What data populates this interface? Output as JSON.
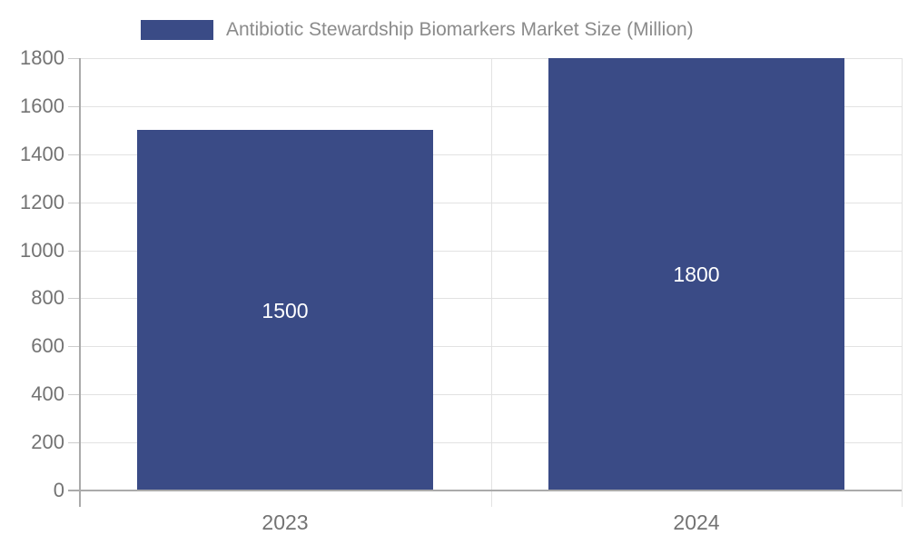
{
  "legend": {
    "label": "Antibiotic Stewardship Biomarkers Market Size (Million)"
  },
  "chart_data": {
    "type": "bar",
    "title": "Antibiotic Stewardship Biomarkers Market Size (Million)",
    "categories": [
      "2023",
      "2024"
    ],
    "values": [
      1500,
      1800
    ],
    "bar_labels": [
      "1500",
      "1800"
    ],
    "xlabel": "",
    "ylabel": "",
    "ylim": [
      0,
      1800
    ],
    "ytick_step": 200,
    "yticks": [
      0,
      200,
      400,
      600,
      800,
      1000,
      1200,
      1400,
      1600,
      1800
    ],
    "grid": true,
    "legend_position": "top",
    "colors": {
      "bar": "#3A4B86",
      "bar_label_text": "#ffffff",
      "axis_text": "#737373",
      "legend_text": "#8b8b8b",
      "grid_line": "#e2e2e2",
      "axis_line": "#aaaaaa",
      "minor_tick": "#cccccc",
      "background": "#ffffff"
    }
  }
}
